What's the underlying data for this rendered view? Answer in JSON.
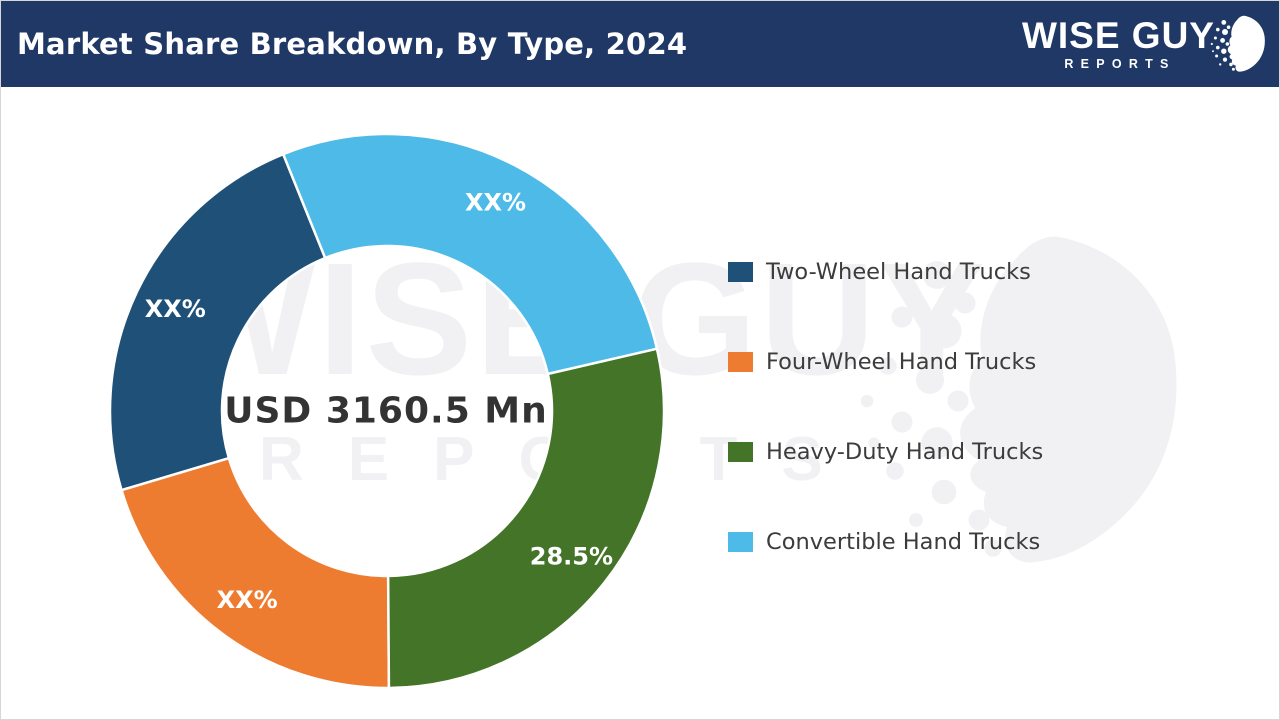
{
  "header": {
    "title": "Market Share Breakdown, By Type, 2024",
    "background_color": "#1f3866",
    "logo": {
      "name": "WISE GUY",
      "subtitle": "REPORTS"
    }
  },
  "watermark": {
    "line1": "WISE GUY",
    "line2": "REPORTS"
  },
  "chart_data": {
    "type": "pie",
    "donut": true,
    "title": "Market Share Breakdown, By Type, 2024",
    "center_label": "USD 3160.5 Mn",
    "start_angle_deg": 112,
    "direction": "counterclockwise",
    "legend_position": "right",
    "series": [
      {
        "name": "Two-Wheel Hand Trucks",
        "slice_label": "XX%",
        "share_pct": 23.5,
        "color": "#1f5078"
      },
      {
        "name": "Four-Wheel Hand Trucks",
        "slice_label": "XX%",
        "share_pct": 20.5,
        "color": "#ee7c30"
      },
      {
        "name": "Heavy-Duty Hand Trucks",
        "slice_label": "28.5%",
        "share_pct": 28.5,
        "color": "#447428"
      },
      {
        "name": "Convertible Hand Trucks",
        "slice_label": "XX%",
        "share_pct": 27.5,
        "color": "#4dbae8"
      }
    ]
  }
}
